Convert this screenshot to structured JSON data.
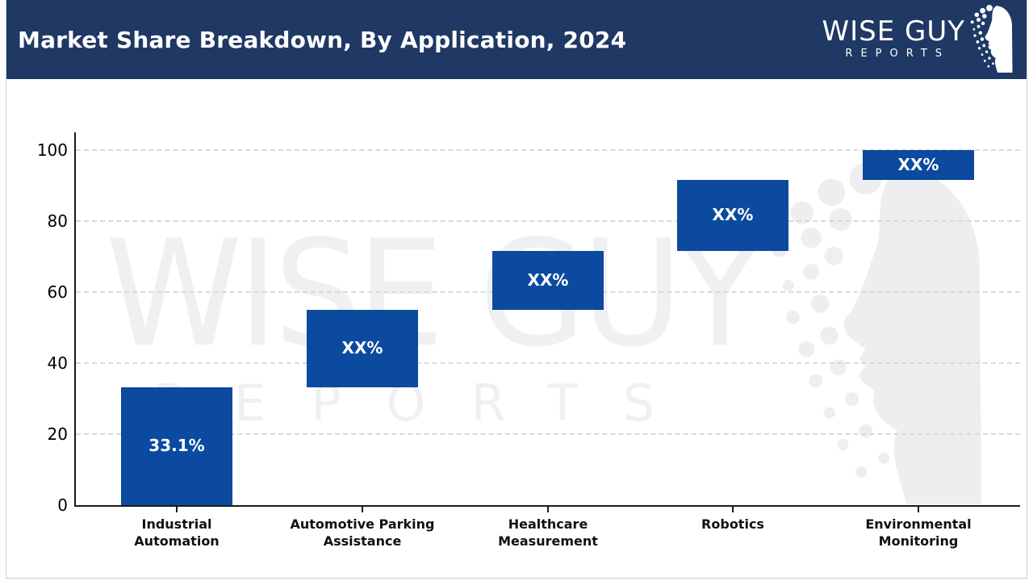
{
  "header": {
    "title": "Market Share Breakdown, By Application, 2024",
    "brand_line1": "WISE GUY",
    "brand_line2": "REPORTS",
    "bg_color": "#1f3864"
  },
  "watermark": {
    "line1": "WISE GUY",
    "line2": "REPORTS"
  },
  "chart_data": {
    "type": "bar",
    "subtype": "waterfall",
    "title": "Market Share Breakdown, By Application, 2024",
    "categories": [
      {
        "label": "Industrial Automation",
        "lines": [
          "Industrial",
          "Automation"
        ]
      },
      {
        "label": "Automotive Parking Assistance",
        "lines": [
          "Automotive Parking",
          "Assistance"
        ]
      },
      {
        "label": "Healthcare Measurement",
        "lines": [
          "Healthcare",
          "Measurement"
        ]
      },
      {
        "label": "Robotics",
        "lines": [
          "Robotics"
        ]
      },
      {
        "label": "Environmental Monitoring",
        "lines": [
          "Environmental",
          "Monitoring"
        ]
      }
    ],
    "segments": [
      {
        "start": 0,
        "end": 33.1,
        "label": "33.1%"
      },
      {
        "start": 33.1,
        "end": 55.0,
        "label": "XX%"
      },
      {
        "start": 55.0,
        "end": 71.5,
        "label": "XX%"
      },
      {
        "start": 71.5,
        "end": 91.5,
        "label": "XX%"
      },
      {
        "start": 91.5,
        "end": 100,
        "label": "XX%"
      }
    ],
    "ylim": [
      0,
      100
    ],
    "yticks": [
      0,
      20,
      40,
      60,
      80,
      100
    ],
    "grid": "horizontal-dashed",
    "legend": "none",
    "bar_color": "#0b4a9e",
    "bar_label_color": "#ffffff",
    "xlabel": "",
    "ylabel": ""
  }
}
